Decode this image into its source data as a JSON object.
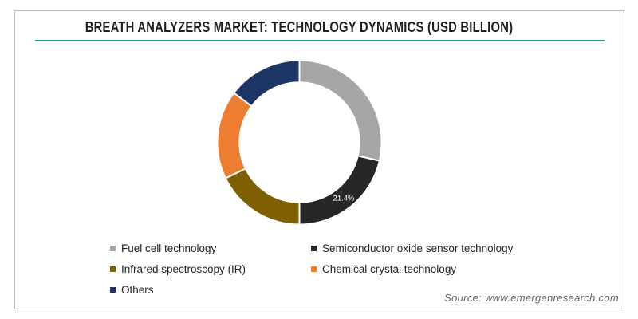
{
  "card": {
    "title": "BREATH ANALYZERS MARKET: TECHNOLOGY DYNAMICS (USD BILLION)",
    "title_color": "#1e1e26",
    "underline_color": "#21a08a",
    "border_color": "#bdbdbd",
    "source": "Source: www.emergenresearch.com",
    "source_color": "#666666"
  },
  "chart_data": {
    "type": "pie",
    "subtype": "donut",
    "title": "BREATH ANALYZERS MARKET: TECHNOLOGY DYNAMICS (USD BILLION)",
    "units": "percent share",
    "direction": "clockwise",
    "start_angle_deg": 0,
    "inner_radius_ratio": 0.73,
    "legend_position": "bottom",
    "data_label_color": "#ffffff",
    "segments": [
      {
        "label": "Fuel cell technology",
        "value": 28.6,
        "color": "#a6a6a6",
        "data_label": ""
      },
      {
        "label": "Semiconductor oxide sensor technology",
        "value": 21.4,
        "color": "#262626",
        "data_label": "21.4%"
      },
      {
        "label": "Infrared spectroscopy (IR)",
        "value": 17.8,
        "color": "#7f6000",
        "data_label": ""
      },
      {
        "label": "Chemical crystal technology",
        "value": 17.5,
        "color": "#ed7d31",
        "data_label": ""
      },
      {
        "label": "Others",
        "value": 14.7,
        "color": "#1c3564",
        "data_label": ""
      }
    ]
  }
}
